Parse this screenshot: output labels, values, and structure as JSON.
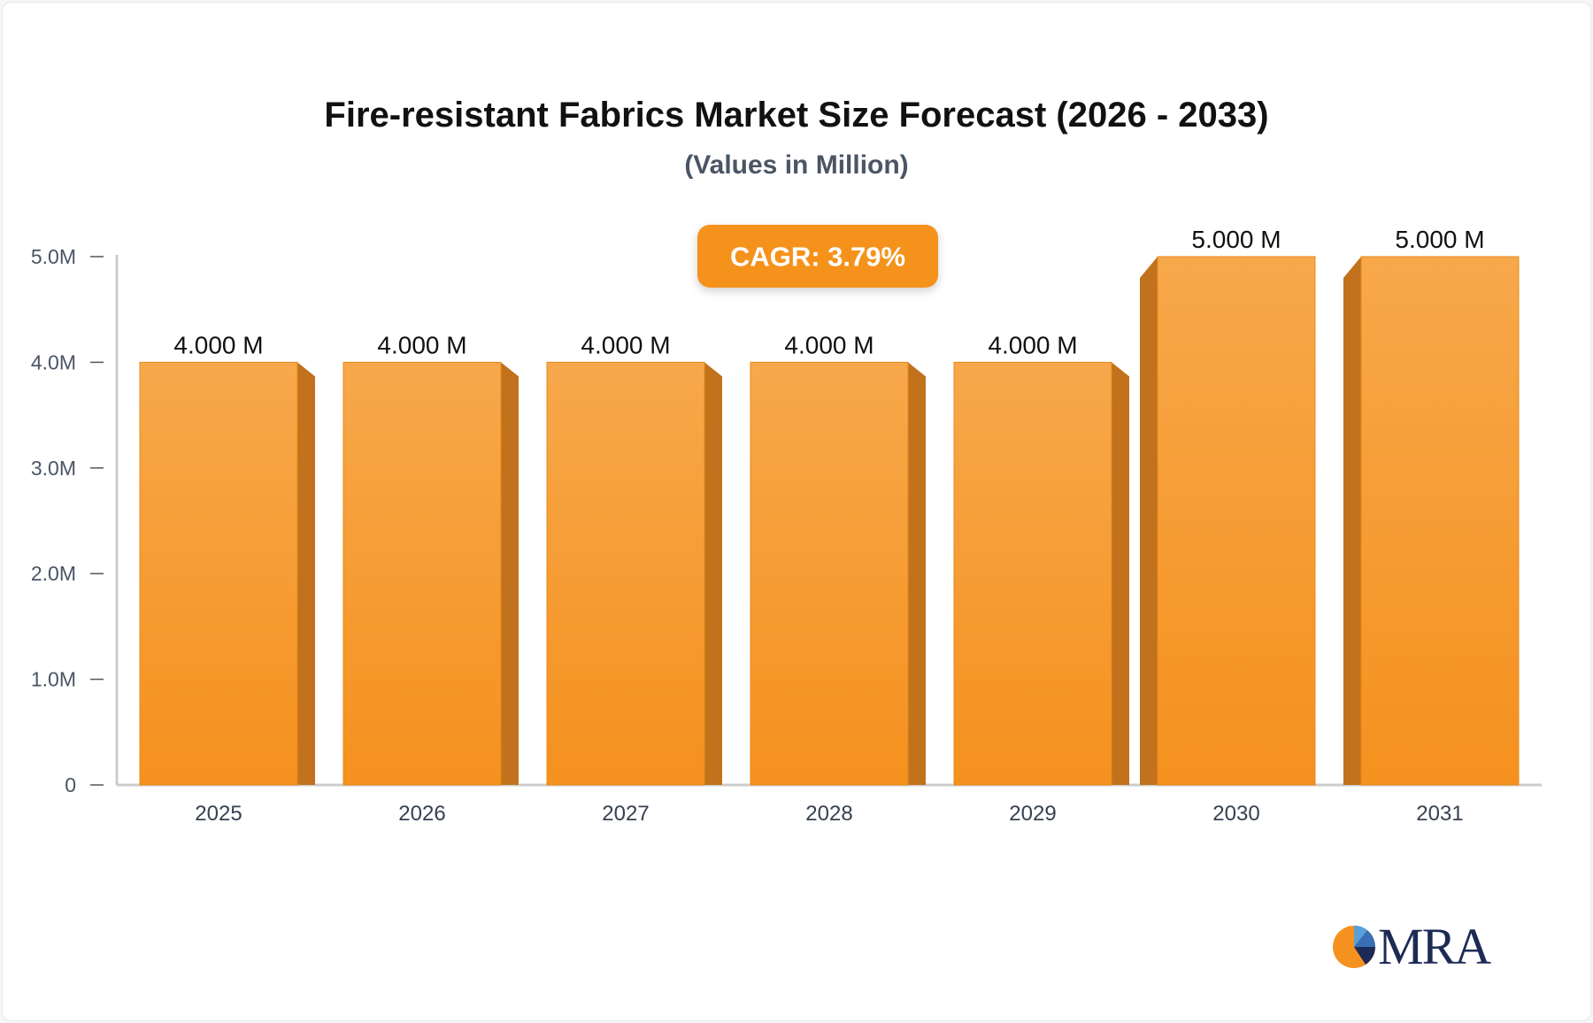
{
  "chart_data": {
    "type": "bar",
    "title": "Fire-resistant Fabrics Market Size Forecast (2026 - 2033)",
    "subtitle": "(Values in Million)",
    "categories": [
      "2025",
      "2026",
      "2027",
      "2028",
      "2029",
      "2030",
      "2031"
    ],
    "values": [
      4.0,
      4.0,
      4.0,
      4.0,
      4.0,
      5.0,
      5.0
    ],
    "value_labels": [
      "4.000 M",
      "4.000 M",
      "4.000 M",
      "4.000 M",
      "4.000 M",
      "5.000 M",
      "5.000 M"
    ],
    "y_ticks": [
      {
        "value": 0,
        "label": "0"
      },
      {
        "value": 1,
        "label": "1.0M"
      },
      {
        "value": 2,
        "label": "2.0M"
      },
      {
        "value": 3,
        "label": "3.0M"
      },
      {
        "value": 4,
        "label": "4.0M"
      },
      {
        "value": 5,
        "label": "5.0M"
      }
    ],
    "ylim": [
      0,
      5
    ],
    "annotation": "CAGR: 3.79%",
    "grid": false,
    "colors": {
      "bar_top": "#f7a84b",
      "bar_bottom": "#f5911e",
      "bar_side": "#c2711c",
      "badge": "#f5921f",
      "axis": "#cccccc"
    }
  },
  "logo": {
    "text": "MRA"
  }
}
